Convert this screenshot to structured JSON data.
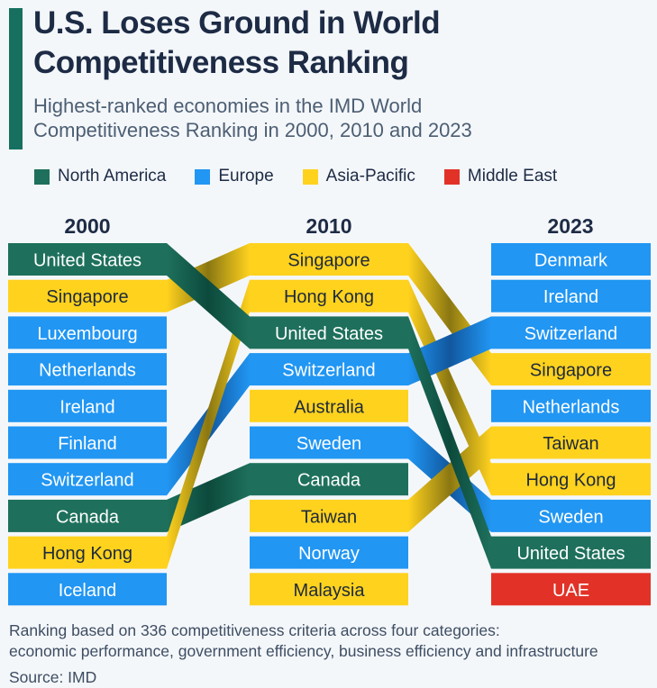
{
  "header": {
    "title_line1": "U.S. Loses Ground in World",
    "title_line2": "Competitiveness Ranking",
    "subtitle_line1": "Highest-ranked economies in the IMD World",
    "subtitle_line2": "Competitiveness Ranking in 2000, 2010 and 2023",
    "accent_color": "#17705F"
  },
  "legend": {
    "items": [
      {
        "label": "North America",
        "region": "North America"
      },
      {
        "label": "Europe",
        "region": "Europe"
      },
      {
        "label": "Asia-Pacific",
        "region": "Asia-Pacific"
      },
      {
        "label": "Middle East",
        "region": "Middle East"
      }
    ]
  },
  "footer": {
    "line1": "Ranking based on 336 competitiveness criteria across four categories:",
    "line2": "economic performance, government efficiency, business efficiency and infrastructure",
    "source": "Source: IMD"
  },
  "chart_data": {
    "type": "bump",
    "title": "U.S. Loses Ground in World Competitiveness Ranking",
    "subtitle": "Highest-ranked economies in the IMD World Competitiveness Ranking in 2000, 2010 and 2023",
    "columns": [
      {
        "year": "2000",
        "items": [
          {
            "name": "United States",
            "region": "North America"
          },
          {
            "name": "Singapore",
            "region": "Asia-Pacific"
          },
          {
            "name": "Luxembourg",
            "region": "Europe"
          },
          {
            "name": "Netherlands",
            "region": "Europe"
          },
          {
            "name": "Ireland",
            "region": "Europe"
          },
          {
            "name": "Finland",
            "region": "Europe"
          },
          {
            "name": "Switzerland",
            "region": "Europe"
          },
          {
            "name": "Canada",
            "region": "North America"
          },
          {
            "name": "Hong Kong",
            "region": "Asia-Pacific"
          },
          {
            "name": "Iceland",
            "region": "Europe"
          }
        ]
      },
      {
        "year": "2010",
        "items": [
          {
            "name": "Singapore",
            "region": "Asia-Pacific"
          },
          {
            "name": "Hong Kong",
            "region": "Asia-Pacific"
          },
          {
            "name": "United States",
            "region": "North America"
          },
          {
            "name": "Switzerland",
            "region": "Europe"
          },
          {
            "name": "Australia",
            "region": "Asia-Pacific"
          },
          {
            "name": "Sweden",
            "region": "Europe"
          },
          {
            "name": "Canada",
            "region": "North America"
          },
          {
            "name": "Taiwan",
            "region": "Asia-Pacific"
          },
          {
            "name": "Norway",
            "region": "Europe"
          },
          {
            "name": "Malaysia",
            "region": "Asia-Pacific"
          }
        ]
      },
      {
        "year": "2023",
        "items": [
          {
            "name": "Denmark",
            "region": "Europe"
          },
          {
            "name": "Ireland",
            "region": "Europe"
          },
          {
            "name": "Switzerland",
            "region": "Europe"
          },
          {
            "name": "Singapore",
            "region": "Asia-Pacific"
          },
          {
            "name": "Netherlands",
            "region": "Europe"
          },
          {
            "name": "Taiwan",
            "region": "Asia-Pacific"
          },
          {
            "name": "Hong Kong",
            "region": "Asia-Pacific"
          },
          {
            "name": "Sweden",
            "region": "Europe"
          },
          {
            "name": "United States",
            "region": "North America"
          },
          {
            "name": "UAE",
            "region": "Middle East"
          }
        ]
      }
    ],
    "region_styles": {
      "North America": {
        "base": "#1E705C",
        "dark": "#0C4A3C",
        "text": "#FFFFFF"
      },
      "Europe": {
        "base": "#2196F3",
        "dark": "#11579E",
        "text": "#FFFFFF"
      },
      "Asia-Pacific": {
        "base": "#FFD21E",
        "dark": "#8A7712",
        "text": "#1D2A3A"
      },
      "Middle East": {
        "base": "#E23228",
        "dark": "#8F1F19",
        "text": "#FFFFFF"
      }
    },
    "link_draw_order": [
      [
        "Canada",
        "Switzerland",
        "Singapore",
        "Hong Kong",
        "United States"
      ],
      [
        "Sweden",
        "Taiwan",
        "Hong Kong",
        "Singapore",
        "Switzerland",
        "United States"
      ]
    ]
  }
}
